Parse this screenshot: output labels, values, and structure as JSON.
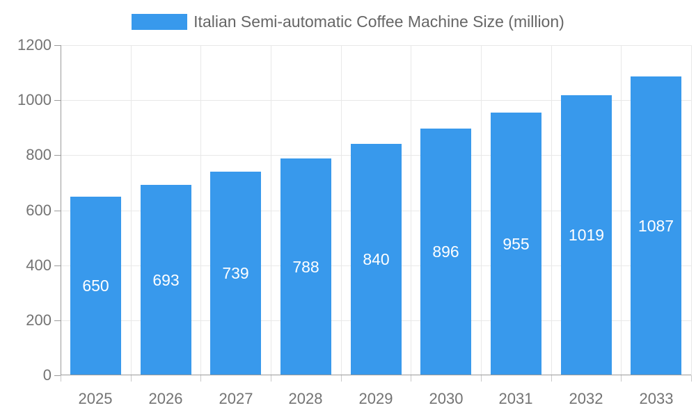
{
  "legend": {
    "label": "Italian Semi-automatic Coffee Machine Size (million)"
  },
  "colors": {
    "bar": "#3899EC",
    "bar_value_text": "#FFFFFF",
    "axis_label_text": "#737373",
    "legend_text": "#666666",
    "grid_line": "#E8E8E8",
    "axis_line": "#9A9A9A"
  },
  "chart_data": {
    "type": "bar",
    "categories": [
      "2025",
      "2026",
      "2027",
      "2028",
      "2029",
      "2030",
      "2031",
      "2032",
      "2033"
    ],
    "values": [
      650,
      693,
      739,
      788,
      840,
      896,
      955,
      1019,
      1087
    ],
    "series_name": "Italian Semi-automatic Coffee Machine Size (million)",
    "title": "",
    "xlabel": "",
    "ylabel": "",
    "ylim": [
      0,
      1200
    ],
    "ytick_step": 200,
    "yticks": [
      0,
      200,
      400,
      600,
      800,
      1000,
      1200
    ],
    "grid": true,
    "legend_position": "top-center",
    "bar_labels_visible": true,
    "bar_label_position": "center"
  }
}
